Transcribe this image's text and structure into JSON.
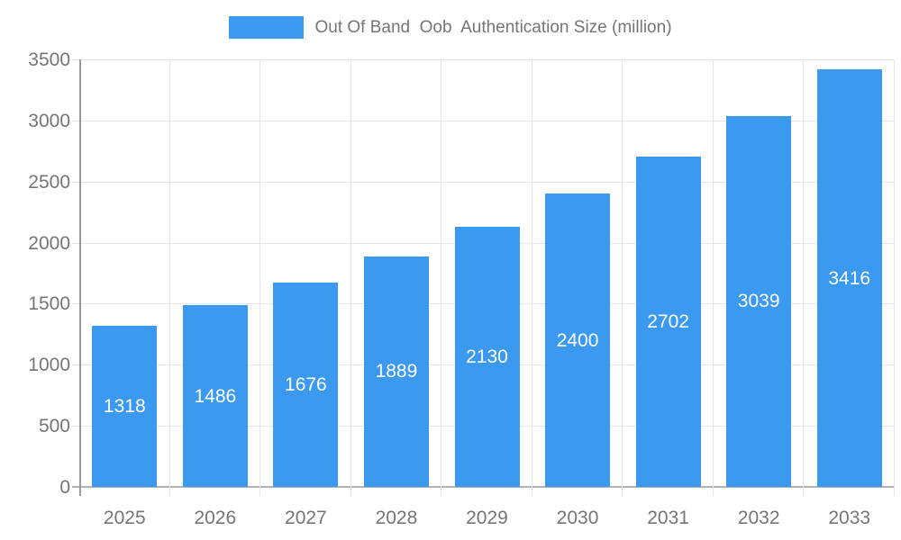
{
  "chart_data": {
    "type": "bar",
    "legend_label": "Out Of Band  Oob  Authentication Size (million)",
    "categories": [
      "2025",
      "2026",
      "2027",
      "2028",
      "2029",
      "2030",
      "2031",
      "2032",
      "2033"
    ],
    "values": [
      1318,
      1486,
      1676,
      1889,
      2130,
      2400,
      2702,
      3039,
      3416
    ],
    "xlabel": "",
    "ylabel": "",
    "ylim": [
      0,
      3500
    ],
    "ytick_step": 500,
    "yticks": [
      0,
      500,
      1000,
      1500,
      2000,
      2500,
      3000,
      3500
    ],
    "grid": "on",
    "legend_position": "top-center",
    "value_labels": "inside-center-white",
    "colors": {
      "bar": "#3b99f0",
      "gridline": "#e6e6e6",
      "axis_line": "#999999",
      "baseline": "#b3b3b3",
      "tick_text": "#757575",
      "legend_text": "#757575",
      "bar_label_text": "#ffffff",
      "background": "#ffffff"
    }
  }
}
